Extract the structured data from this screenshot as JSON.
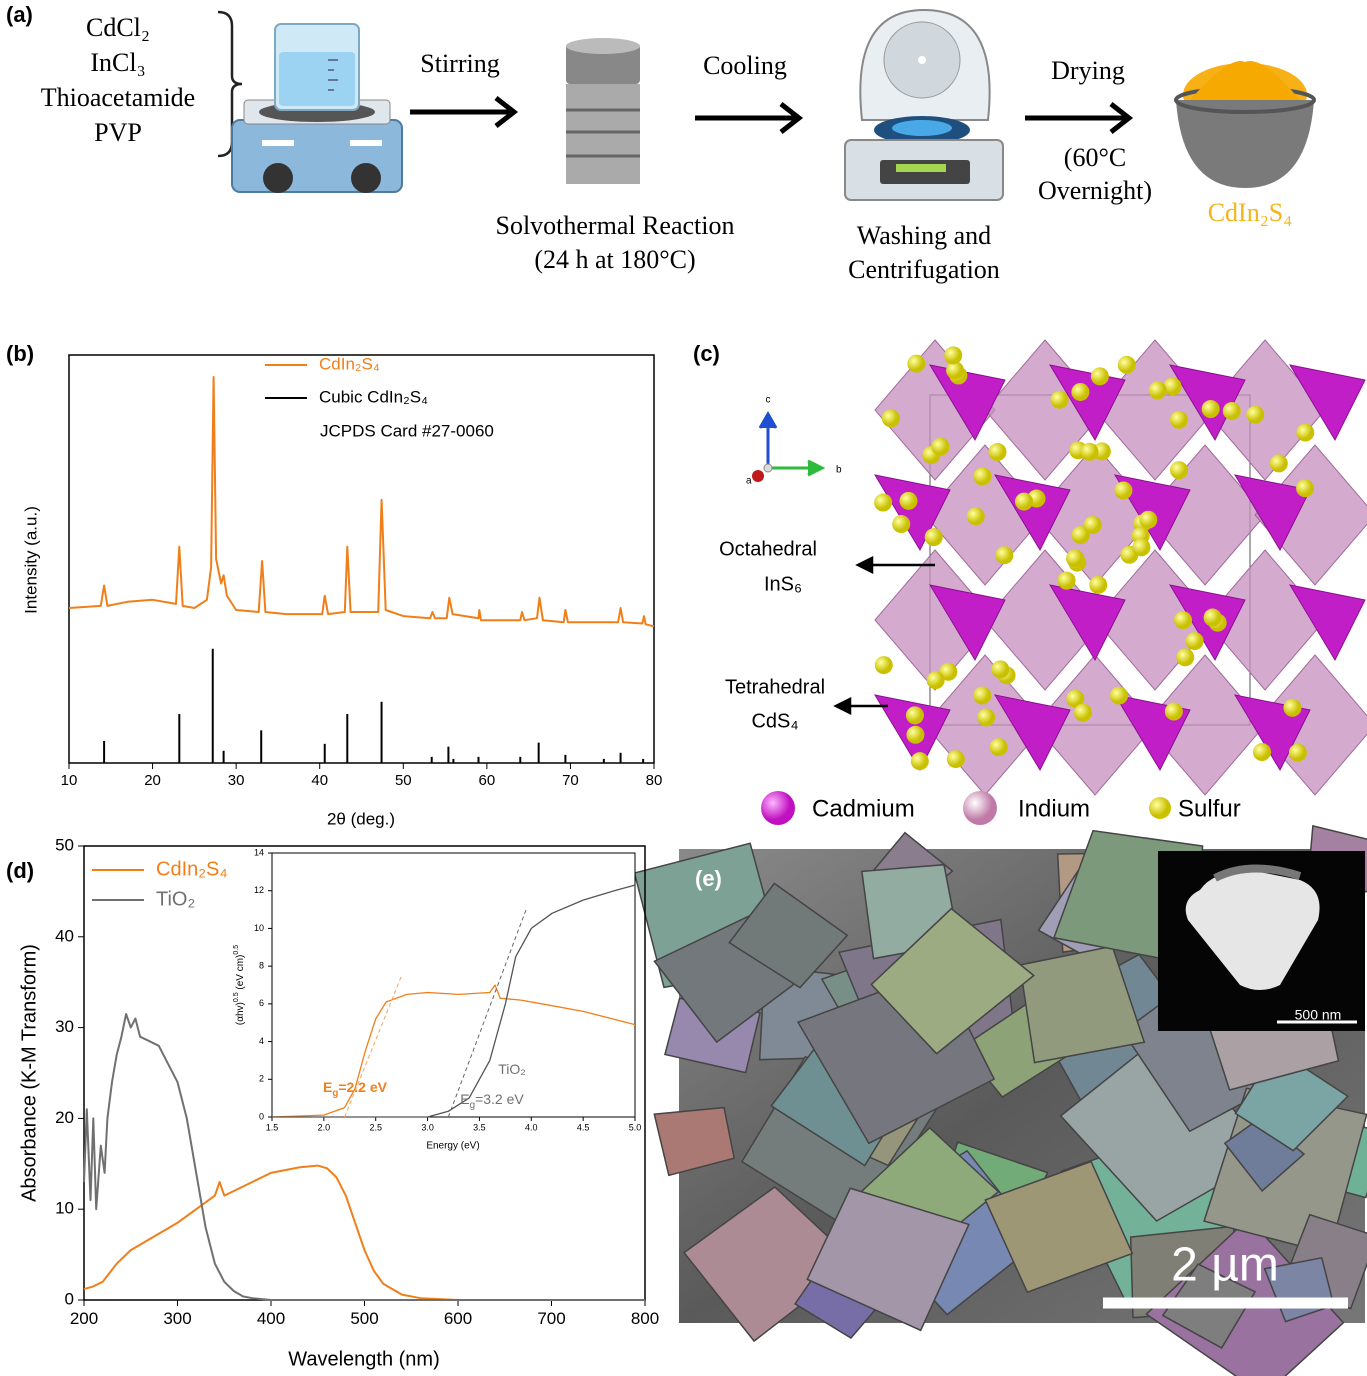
{
  "panel_a": {
    "label": "(a)",
    "reagents": [
      "CdCl₂",
      "InCl₃",
      "Thioacetamide",
      "PVP"
    ],
    "stirring": "Stirring",
    "solvothermal": [
      "Solvothermal Reaction",
      "(24 h at 180°C)"
    ],
    "cooling": "Cooling",
    "washing": [
      "Washing and",
      "Centrifugation"
    ],
    "drying": "Drying",
    "drying_conditions": [
      "(60°C",
      "Overnight)"
    ],
    "product": "CdIn₂S₄"
  },
  "panel_c": {
    "label": "(c)",
    "axes": [
      "a",
      "b",
      "c"
    ],
    "octahedral": [
      "Octahedral",
      "InS₆"
    ],
    "tetrahedral": [
      "Tetrahedral",
      "CdS₄"
    ],
    "legend": [
      "Cadmium",
      "Indium",
      "Sulfur"
    ]
  },
  "panel_e": {
    "label": "(e)",
    "scale_bar": "2 µm",
    "inset_scale_bar": "500 nm"
  },
  "chart_data": [
    {
      "type": "line",
      "panel_label": "(b)",
      "x_label": "2θ (deg.)",
      "y_label": "Intensity (a.u.)",
      "xlim": [
        10,
        80
      ],
      "ylim": [
        0,
        100
      ],
      "xticks": [
        10,
        20,
        30,
        40,
        50,
        60,
        70,
        80
      ],
      "legend_note": "JCPDS Card #27-0060",
      "series": [
        {
          "name": "CdIn₂S₄",
          "color": "#f07f1a",
          "mode": "line",
          "x": [
            10,
            13.8,
            14.2,
            14.6,
            17,
            20,
            22.8,
            23.2,
            23.6,
            25,
            26.5,
            27.0,
            27.3,
            27.6,
            28.2,
            28.5,
            28.9,
            30,
            32.7,
            33.1,
            33.5,
            36,
            40.3,
            40.6,
            41,
            43,
            43.3,
            43.7,
            47,
            47.4,
            47.9,
            50,
            53.2,
            53.5,
            53.8,
            55.2,
            55.5,
            55.9,
            59,
            59.1,
            59.3,
            64,
            64.2,
            64.5,
            66,
            66.3,
            66.7,
            69.2,
            69.4,
            69.7,
            75.7,
            76,
            76.3,
            78.6,
            78.8,
            79,
            80
          ],
          "values": [
            38,
            38.5,
            43.5,
            38.5,
            39.5,
            40,
            39,
            53,
            38.5,
            38,
            40,
            48,
            94.6,
            50,
            44,
            46,
            41,
            37.5,
            37,
            49.5,
            37,
            36.5,
            36.5,
            41,
            36.5,
            37,
            53,
            37,
            37,
            64.5,
            37.5,
            36,
            35.5,
            37,
            35.5,
            35.5,
            40.5,
            36.5,
            35.5,
            37.5,
            35,
            35,
            37,
            35,
            35.5,
            40.5,
            35,
            34.5,
            37.5,
            34.5,
            34.5,
            38,
            34.5,
            34.2,
            36,
            34,
            33.5
          ]
        },
        {
          "name": "Cubic CdIn₂S₄",
          "color": "#000000",
          "mode": "stick",
          "x": [
            14.2,
            23.2,
            27.2,
            28.5,
            33.0,
            40.6,
            43.3,
            47.4,
            53.4,
            55.4,
            56.0,
            59.0,
            64.0,
            66.2,
            69.4,
            74.0,
            76.0,
            78.7
          ],
          "values": [
            5.4,
            12,
            28,
            3,
            8,
            4.7,
            12,
            15,
            1.5,
            4,
            1,
            1.5,
            1.5,
            5,
            2,
            1,
            2.5,
            1
          ]
        }
      ]
    },
    {
      "type": "line",
      "panel_label": "(d)",
      "x_label": "Wavelength (nm)",
      "y_label": "Absorbance (K-M Transform)",
      "xlim": [
        200,
        800
      ],
      "ylim": [
        0,
        50
      ],
      "xticks": [
        200,
        300,
        400,
        500,
        600,
        700,
        800
      ],
      "yticks": [
        0,
        10,
        20,
        30,
        40,
        50
      ],
      "series": [
        {
          "name": "CdIn₂S₄",
          "color": "#f07f1a",
          "mode": "line",
          "x": [
            200,
            210,
            220,
            235,
            250,
            300,
            340,
            345,
            350,
            380,
            400,
            430,
            450,
            460,
            470,
            480,
            490,
            500,
            510,
            520,
            540,
            560,
            600,
            800
          ],
          "values": [
            1.2,
            1.5,
            2,
            4,
            5.5,
            8.5,
            11.5,
            13,
            11.5,
            13,
            14,
            14.6,
            14.8,
            14.5,
            13.5,
            11.5,
            8.5,
            5.5,
            3.2,
            1.8,
            0.6,
            0.2,
            0,
            0
          ]
        },
        {
          "name": "TiO₂",
          "color": "#707070",
          "mode": "line",
          "x": [
            200,
            203,
            207,
            210,
            213,
            218,
            222,
            225,
            230,
            235,
            240,
            245,
            250,
            255,
            260,
            270,
            280,
            290,
            300,
            310,
            320,
            330,
            340,
            350,
            360,
            370,
            380,
            400,
            800
          ],
          "values": [
            13,
            21,
            11,
            20,
            10,
            17,
            14,
            20,
            24,
            27,
            29,
            31.5,
            30,
            31,
            29,
            28.5,
            28,
            26,
            24,
            20,
            14,
            8,
            4,
            2,
            1,
            0.4,
            0.2,
            0,
            0
          ]
        }
      ]
    },
    {
      "type": "line",
      "x_label": "Energy (eV)",
      "y_label": {
        "parts": [
          "(αhv)",
          "0.5",
          " (eV cm)",
          "0.5"
        ]
      },
      "xlim": [
        1.5,
        5.0
      ],
      "ylim": [
        0,
        14
      ],
      "xticks": [
        1.5,
        {
          "value": 2,
          "label": "2.0"
        },
        2.5,
        {
          "value": 3,
          "label": "3.0"
        },
        3.5,
        {
          "value": 4,
          "label": "4.0"
        },
        4.5,
        {
          "value": 5,
          "label": "5.0"
        }
      ],
      "yticks": [
        0,
        2,
        4,
        6,
        8,
        10,
        12,
        14
      ],
      "series": [
        {
          "color": "#f07f1a",
          "mode": "line",
          "x": [
            1.5,
            2.0,
            2.2,
            2.3,
            2.4,
            2.5,
            2.6,
            2.8,
            3.0,
            3.3,
            3.6,
            3.65,
            3.7,
            3.9,
            4.2,
            4.5,
            5.0
          ],
          "values": [
            0,
            0.1,
            0.5,
            1.5,
            3.5,
            5.2,
            6.1,
            6.5,
            6.6,
            6.5,
            6.6,
            7.0,
            6.3,
            6.2,
            5.9,
            5.6,
            4.9
          ]
        },
        {
          "color": "#555555",
          "mode": "line",
          "x": [
            1.5,
            3.0,
            3.2,
            3.4,
            3.6,
            3.75,
            3.85,
            4.0,
            4.2,
            4.5,
            4.8,
            5.0
          ],
          "values": [
            0,
            0,
            0.3,
            1,
            3,
            6,
            8.5,
            10,
            10.8,
            11.5,
            12,
            12.3
          ]
        }
      ],
      "annotations": [
        {
          "parts": [
            "E",
            "g",
            "=2.2 eV"
          ],
          "color": "#f07f1a"
        },
        {
          "parts": [
            "TiO₂"
          ],
          "color": "#707070"
        },
        {
          "parts": [
            "E",
            "g",
            "=3.2 eV"
          ],
          "color": "#707070"
        }
      ]
    }
  ]
}
